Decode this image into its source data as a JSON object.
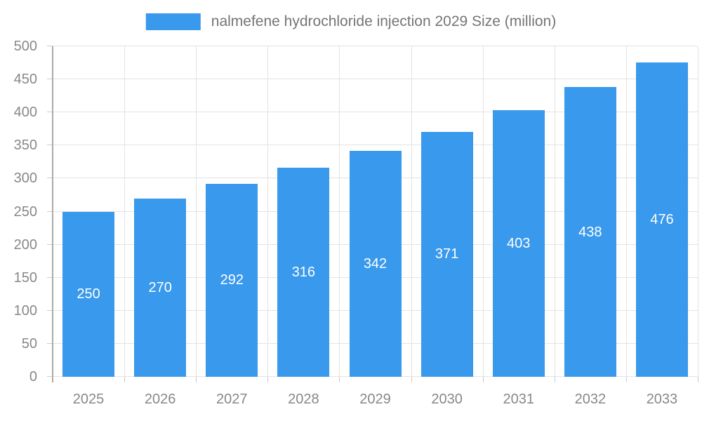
{
  "chart_data": {
    "type": "bar",
    "title": "",
    "legend": "nalmefene hydrochloride injection 2029 Size (million)",
    "legend_position": "top-center",
    "categories": [
      "2025",
      "2026",
      "2027",
      "2028",
      "2029",
      "2030",
      "2031",
      "2032",
      "2033"
    ],
    "series": [
      {
        "name": "nalmefene hydrochloride injection 2029 Size (million)",
        "values": [
          250,
          270,
          292,
          316,
          342,
          371,
          403,
          438,
          476
        ]
      }
    ],
    "xlabel": "",
    "ylabel": "",
    "ylim": [
      0,
      500
    ],
    "ytick_step": 50,
    "yticks": [
      0,
      50,
      100,
      150,
      200,
      250,
      300,
      350,
      400,
      450,
      500
    ],
    "grid": true,
    "bar_labels_visible": true,
    "colors": {
      "bar": "#3999ec",
      "bar_label": "#ffffff",
      "axis_line": "#aaaaaa",
      "grid_line": "#e3e3e3",
      "tick": "#cccccc",
      "axis_text": "#888888",
      "legend_text": "#757575",
      "background": "#ffffff"
    }
  }
}
